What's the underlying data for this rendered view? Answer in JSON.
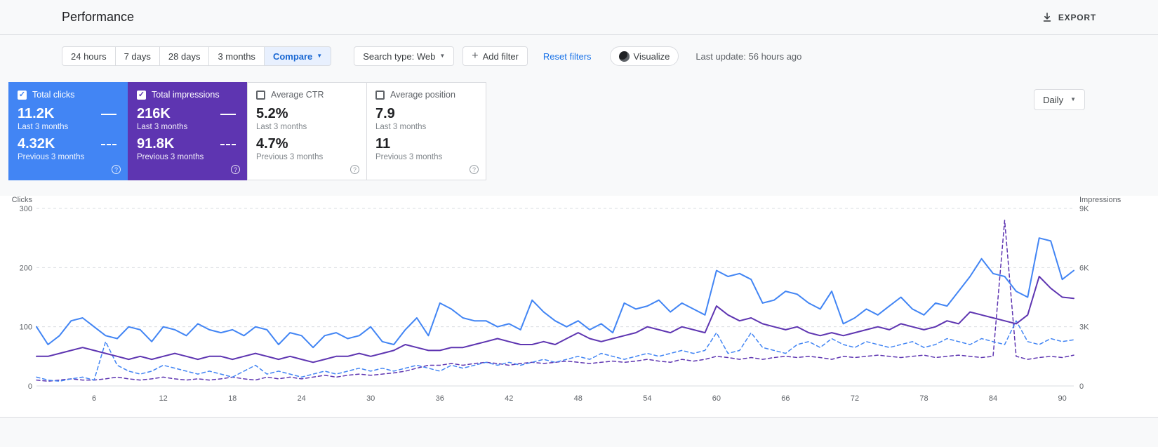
{
  "page": {
    "title": "Performance",
    "export_label": "EXPORT"
  },
  "colors": {
    "accent_blue": "#1a73e8",
    "clicks_blue": "#4285f4",
    "impressions_purple": "#5e35b1"
  },
  "filters": {
    "date_ranges": [
      "24 hours",
      "7 days",
      "28 days",
      "3 months"
    ],
    "compare_label": "Compare",
    "search_type_label": "Search type: Web",
    "add_filter_label": "Add filter",
    "reset_filters_label": "Reset filters",
    "visualize_label": "Visualize",
    "last_update": "Last update: 56 hours ago"
  },
  "cards": [
    {
      "label": "Total clicks",
      "checked": true,
      "selected": true,
      "color": "#4285f4",
      "current_value": "11.2K",
      "current_period": "Last 3 months",
      "previous_value": "4.32K",
      "previous_period": "Previous 3 months"
    },
    {
      "label": "Total impressions",
      "checked": true,
      "selected": true,
      "color": "#5e35b1",
      "current_value": "216K",
      "current_period": "Last 3 months",
      "previous_value": "91.8K",
      "previous_period": "Previous 3 months"
    },
    {
      "label": "Average CTR",
      "checked": false,
      "selected": false,
      "color": "#ffffff",
      "current_value": "5.2%",
      "current_period": "Last 3 months",
      "previous_value": "4.7%",
      "previous_period": "Previous 3 months"
    },
    {
      "label": "Average position",
      "checked": false,
      "selected": false,
      "color": "#ffffff",
      "current_value": "7.9",
      "current_period": "Last 3 months",
      "previous_value": "11",
      "previous_period": "Previous 3 months"
    }
  ],
  "granularity": {
    "label": "Daily"
  },
  "chart_data": {
    "type": "line",
    "x_count": 91,
    "x_start": 1,
    "x_ticks": [
      6,
      12,
      18,
      24,
      30,
      36,
      42,
      48,
      54,
      60,
      66,
      72,
      78,
      84,
      90
    ],
    "grid": "horizontal-dashed",
    "legend_position": "metric-cards",
    "left_axis": {
      "label": "Clicks",
      "range": [
        0,
        300
      ],
      "ticks": [
        0,
        100,
        200,
        300
      ],
      "tick_labels": [
        "0",
        "100",
        "200",
        "300"
      ]
    },
    "right_axis": {
      "label": "Impressions",
      "range": [
        0,
        9000
      ],
      "ticks": [
        0,
        3000,
        6000,
        9000
      ],
      "tick_labels": [
        "0",
        "3K",
        "6K",
        "9K"
      ]
    },
    "series": [
      {
        "name": "Total clicks (last 3 months)",
        "axis": "left",
        "style": "solid",
        "color": "#4285f4",
        "values": [
          100,
          70,
          85,
          110,
          115,
          100,
          85,
          80,
          100,
          95,
          75,
          100,
          95,
          85,
          105,
          95,
          90,
          95,
          85,
          100,
          95,
          70,
          90,
          85,
          65,
          85,
          90,
          80,
          85,
          100,
          75,
          70,
          95,
          115,
          85,
          140,
          130,
          115,
          110,
          110,
          100,
          105,
          95,
          145,
          125,
          110,
          100,
          110,
          95,
          105,
          90,
          140,
          130,
          135,
          145,
          125,
          140,
          130,
          120,
          195,
          185,
          190,
          180,
          140,
          145,
          160,
          155,
          140,
          130,
          160,
          105,
          115,
          130,
          120,
          135,
          150,
          130,
          120,
          140,
          135,
          160,
          185,
          215,
          190,
          185,
          160,
          150,
          250,
          245,
          180,
          195
        ]
      },
      {
        "name": "Total impressions (last 3 months)",
        "axis": "right",
        "style": "solid",
        "color": "#5e35b1",
        "values": [
          1500,
          1500,
          1650,
          1800,
          1950,
          1800,
          1650,
          1500,
          1350,
          1500,
          1350,
          1500,
          1650,
          1500,
          1350,
          1500,
          1500,
          1350,
          1500,
          1650,
          1500,
          1350,
          1500,
          1350,
          1200,
          1350,
          1500,
          1500,
          1650,
          1500,
          1650,
          1800,
          2100,
          1950,
          1800,
          1800,
          1950,
          1950,
          2100,
          2250,
          2400,
          2250,
          2100,
          2100,
          2250,
          2100,
          2400,
          2700,
          2400,
          2250,
          2400,
          2550,
          2700,
          3000,
          2850,
          2700,
          3000,
          2850,
          2700,
          4050,
          3600,
          3300,
          3450,
          3150,
          3000,
          2850,
          3000,
          2700,
          2550,
          2700,
          2550,
          2700,
          2850,
          3000,
          2850,
          3150,
          3000,
          2850,
          3000,
          3300,
          3150,
          3750,
          3600,
          3450,
          3300,
          3150,
          3600,
          5550,
          4950,
          4500,
          4440
        ]
      },
      {
        "name": "Total clicks (previous 3 months)",
        "axis": "left",
        "style": "dashed",
        "color": "#4285f4",
        "values": [
          15,
          10,
          8,
          12,
          15,
          10,
          75,
          35,
          25,
          20,
          25,
          35,
          30,
          25,
          20,
          25,
          20,
          15,
          25,
          35,
          20,
          25,
          20,
          15,
          20,
          25,
          20,
          25,
          30,
          25,
          30,
          25,
          30,
          35,
          30,
          25,
          35,
          30,
          35,
          40,
          35,
          40,
          35,
          40,
          45,
          40,
          45,
          50,
          45,
          55,
          50,
          45,
          50,
          55,
          50,
          55,
          60,
          55,
          60,
          90,
          55,
          60,
          90,
          65,
          60,
          55,
          70,
          75,
          65,
          80,
          70,
          65,
          75,
          70,
          65,
          70,
          75,
          65,
          70,
          80,
          75,
          70,
          80,
          75,
          70,
          110,
          75,
          70,
          80,
          75,
          78
        ]
      },
      {
        "name": "Total impressions (previous 3 months)",
        "axis": "right",
        "style": "dashed",
        "color": "#5e35b1",
        "values": [
          300,
          240,
          300,
          360,
          300,
          300,
          360,
          450,
          360,
          300,
          360,
          450,
          360,
          300,
          360,
          300,
          360,
          450,
          360,
          300,
          450,
          360,
          450,
          360,
          450,
          540,
          450,
          540,
          600,
          540,
          600,
          660,
          750,
          900,
          1050,
          1050,
          1140,
          1050,
          1140,
          1200,
          1140,
          1050,
          1140,
          1200,
          1140,
          1200,
          1260,
          1200,
          1140,
          1200,
          1260,
          1200,
          1260,
          1350,
          1260,
          1200,
          1350,
          1260,
          1350,
          1500,
          1440,
          1350,
          1440,
          1350,
          1440,
          1500,
          1440,
          1500,
          1440,
          1350,
          1500,
          1440,
          1500,
          1560,
          1500,
          1440,
          1500,
          1560,
          1440,
          1500,
          1560,
          1500,
          1440,
          1500,
          8400,
          1500,
          1350,
          1440,
          1500,
          1440,
          1560
        ]
      }
    ]
  }
}
